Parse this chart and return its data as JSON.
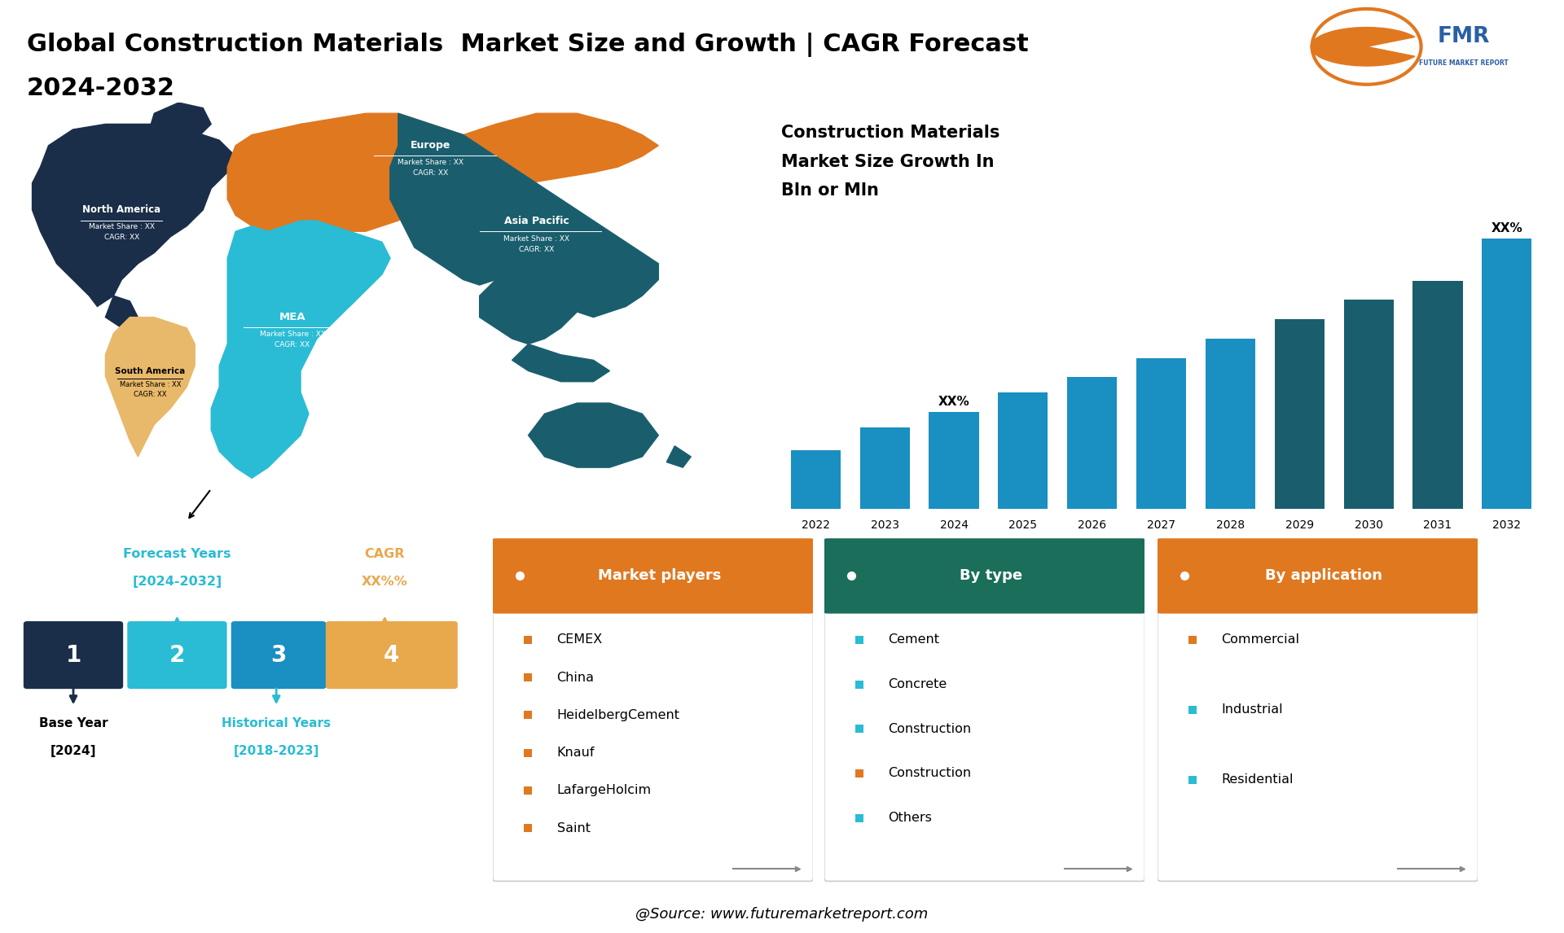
{
  "title_line1": "Global Construction Materials  Market Size and Growth | CAGR Forecast",
  "title_line2": "2024-2032",
  "title_fontsize": 22,
  "title_color": "#000000",
  "bar_years": [
    "2022",
    "2023",
    "2024",
    "2025",
    "2026",
    "2027",
    "2028",
    "2029",
    "2030",
    "2031",
    "2032"
  ],
  "bar_values": [
    3.0,
    4.2,
    5.0,
    6.0,
    6.8,
    7.8,
    8.8,
    9.8,
    10.8,
    11.8,
    14.0
  ],
  "bar_colors": [
    "#1a8fc1",
    "#1a8fc1",
    "#1a8fc1",
    "#1a8fc1",
    "#1a8fc1",
    "#1a8fc1",
    "#1a8fc1",
    "#1a5e6e",
    "#1a5e6e",
    "#1a5e6e",
    "#1a8fc1"
  ],
  "chart_subtitle_lines": [
    "Construction Materials",
    "Market Size Growth In",
    "Bln or Mln"
  ],
  "xx_label_idx_1": 2,
  "xx_label_idx_2": 10,
  "xx_label": "XX%",
  "market_players_label": "Market players",
  "market_players_bg": "#e07820",
  "by_type_label": "By type",
  "by_type_bg": "#1a6e5a",
  "by_app_label": "By application",
  "by_app_bg": "#e07820",
  "market_players_items": [
    "CEMEX",
    "China",
    "HeidelbergCement",
    "Knauf",
    "LafargeHolcim",
    "Saint"
  ],
  "market_players_bullets": [
    "#e07820",
    "#e07820",
    "#e07820",
    "#e07820",
    "#e07820",
    "#e07820"
  ],
  "by_type_items": [
    "Cement",
    "Concrete",
    "Construction",
    "Construction",
    "Others"
  ],
  "by_type_bullets": [
    "#2abcd4",
    "#2abcd4",
    "#2abcd4",
    "#e07820",
    "#2abcd4"
  ],
  "by_app_items": [
    "Commercial",
    "Industrial",
    "Residential"
  ],
  "by_app_bullets": [
    "#e07820",
    "#2abcd4",
    "#2abcd4"
  ],
  "forecast_label_line1": "Forecast Years",
  "forecast_label_line2": "[2024-2032]",
  "forecast_color": "#2abcd4",
  "cagr_label_line1": "CAGR",
  "cagr_label_line2": "XX%%",
  "cagr_color": "#e8a84c",
  "historical_label_line1": "Historical Years",
  "historical_label_line2": "[2018-2023]",
  "historical_color": "#2abcd4",
  "base_year_line1": "Base Year",
  "base_year_line2": "[2024]",
  "timeline_boxes": [
    {
      "num": "1",
      "color": "#1a2e4a"
    },
    {
      "num": "2",
      "color": "#2abcd4"
    },
    {
      "num": "3",
      "color": "#1a8fc1"
    },
    {
      "num": "4",
      "color": "#e8a84c"
    }
  ],
  "source_text": "@Source: www.futuremarketreport.com",
  "bg_color": "#ffffff",
  "na_color": "#1a2e4a",
  "sa_color": "#e8b96a",
  "eu_color": "#e07820",
  "mea_color": "#2abcd4",
  "ap_color": "#1a5e6e",
  "aus_color": "#1a5e6e",
  "map_label_color_light": "#ffffff",
  "map_label_color_dark": "#000000",
  "fmr_blue": "#2a5fa5",
  "fmr_orange": "#e07820"
}
